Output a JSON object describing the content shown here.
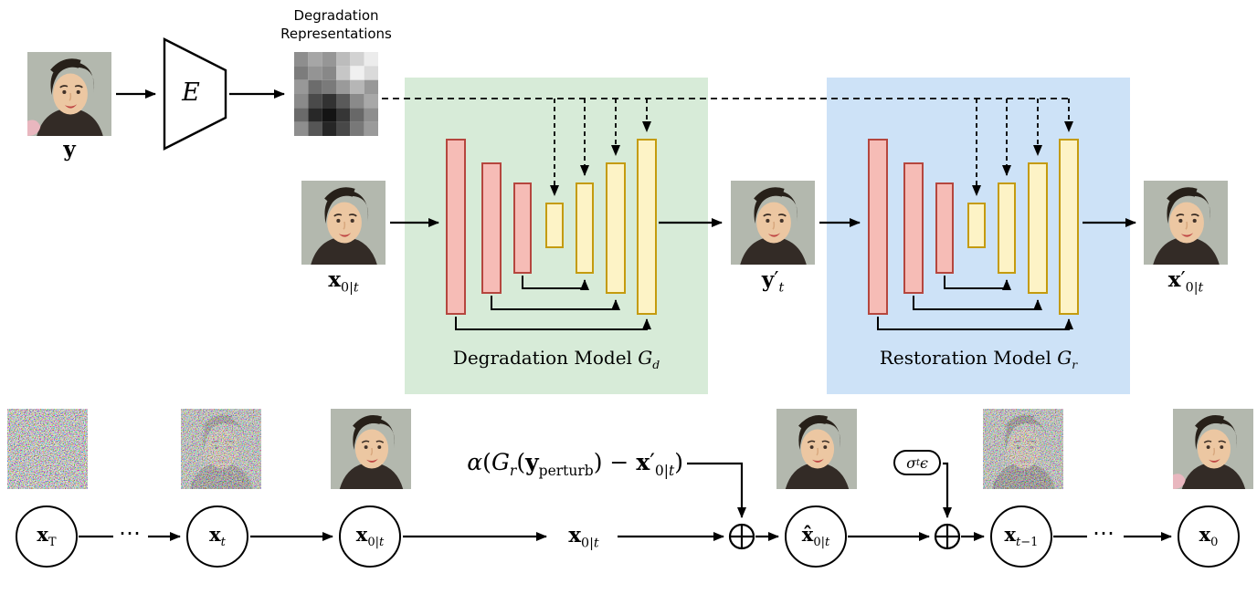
{
  "colors": {
    "degradation_box_bg": "#d7ebd8",
    "restoration_box_bg": "#cde2f7",
    "encoder_bar_fill": "#f6bcb6",
    "encoder_bar_border": "#b5463e",
    "decoder_bar_fill": "#fdf3c6",
    "decoder_bar_border": "#c49b0e"
  },
  "top": {
    "degradation_representations_label": "Degradation<br>Representations",
    "encoder_label": "E",
    "labels": {
      "y": "<b>y</b>",
      "x0t": "<b>x</b><sub>0|<i>t</i></sub>",
      "yt_prime": "<b>y</b>′<sub><i>t</i></sub>",
      "x0t_prime": "<b>x</b>′<sub>0|<i>t</i></sub>"
    },
    "degradation_model_label": "Degradation Model <i>G</i><sub><i>d</i></sub>",
    "restoration_model_label": "Restoration Model <i>G</i><sub><i>r</i></sub>"
  },
  "bottom": {
    "node_xT": "<b>x</b><sub>T</sub>",
    "node_xt": "<b>x</b><sub><i>t</i></sub>",
    "node_x0t": "<b>x</b><sub>0|<i>t</i></sub>",
    "text_x0t": "<b>x</b><sub>0|<i>t</i></sub>",
    "node_xhat0t": "<b>x̂</b><sub>0|<i>t</i></sub>",
    "node_xt_minus_1": "<b>x</b><sub><i>t</i>−1</sub>",
    "node_x0": "<b>x</b><sub>0</sub>",
    "formula": "<i>α</i>(<i>G</i><sub><i>r</i></sub>(<b>y</b><sub>perturb</sub>) − <b>x</b>′<sub>0|<i>t</i></sub>)",
    "sigma_eps": "<i>σ</i><sub><i>t</i></sub><i>ϵ</i>",
    "ellipsis": "⋯"
  }
}
